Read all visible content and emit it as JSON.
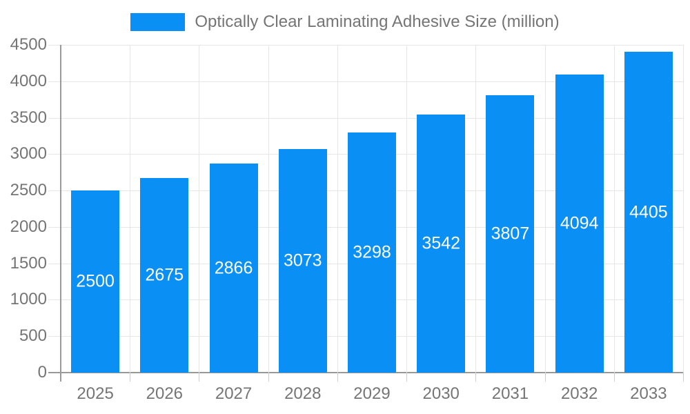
{
  "legend": {
    "label": "Optically Clear Laminating Adhesive Size (million)"
  },
  "colors": {
    "bar": "#0a8ff5",
    "axis_line": "#999999",
    "gridline": "#e6e6e6",
    "tick": "#cccccc",
    "axis_text": "#757575",
    "value_text": "#ffffff",
    "background": "#ffffff"
  },
  "chart_data": {
    "type": "bar",
    "title": "Optically Clear Laminating Adhesive Size (million)",
    "categories": [
      "2025",
      "2026",
      "2027",
      "2028",
      "2029",
      "2030",
      "2031",
      "2032",
      "2033"
    ],
    "values": [
      2500,
      2675,
      2866,
      3073,
      3298,
      3542,
      3807,
      4094,
      4405
    ],
    "xlabel": "",
    "ylabel": "",
    "ylim": [
      0,
      4500
    ],
    "yticks": [
      0,
      500,
      1000,
      1500,
      2000,
      2500,
      3000,
      3500,
      4000,
      4500
    ],
    "grid": true,
    "legend_position": "top",
    "value_labels": "inside-center"
  }
}
